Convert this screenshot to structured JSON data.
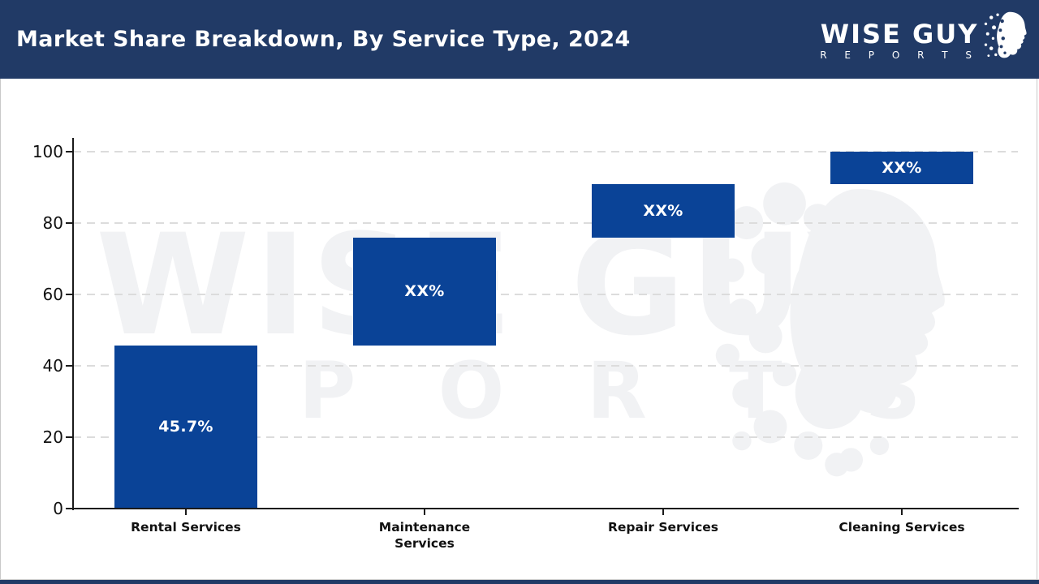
{
  "header": {
    "title": "Market Share Breakdown, By Service Type, 2024",
    "logo": {
      "brand": "WISE GUY",
      "sub": "R E P O R T S",
      "face_icon": "head-profile-dots-icon"
    }
  },
  "watermark": {
    "line1": "WISE GUY",
    "line2": "P O R T S",
    "face_icon": "head-profile-dots-watermark"
  },
  "chart_data": {
    "type": "bar",
    "subtype": "waterfall",
    "title": "Market Share Breakdown, By Service Type, 2024",
    "xlabel": "",
    "ylabel": "",
    "ylim": [
      0,
      100
    ],
    "yticks": [
      0,
      20,
      40,
      60,
      80,
      100
    ],
    "grid": "horizontal dashed",
    "legend": "none",
    "categories": [
      "Rental Services",
      "Maintenance Services",
      "Repair Services",
      "Cleaning Services"
    ],
    "category_label_lines": [
      [
        "Rental Services"
      ],
      [
        "Maintenance",
        "Services"
      ],
      [
        "Repair Services"
      ],
      [
        "Cleaning Services"
      ]
    ],
    "segments": [
      {
        "category": "Rental Services",
        "start": 0,
        "end": 45.7,
        "value": 45.7,
        "label": "45.7%"
      },
      {
        "category": "Maintenance Services",
        "start": 45.7,
        "end": 76.0,
        "value": 30.3,
        "label": "XX%"
      },
      {
        "category": "Repair Services",
        "start": 76.0,
        "end": 91.0,
        "value": 15.0,
        "label": "XX%"
      },
      {
        "category": "Cleaning Services",
        "start": 91.0,
        "end": 100.0,
        "value": 9.0,
        "label": "XX%"
      }
    ],
    "bar_color": "#0a4397",
    "value_label_color": "#ffffff"
  },
  "colors": {
    "header_bg": "#213a66",
    "footer_bg": "#213a66",
    "bar": "#0a4397",
    "axis": "#1a1a1a",
    "grid": "#dcdcdc",
    "watermark": "#f1f2f4",
    "page_bg": "#ffffff"
  }
}
